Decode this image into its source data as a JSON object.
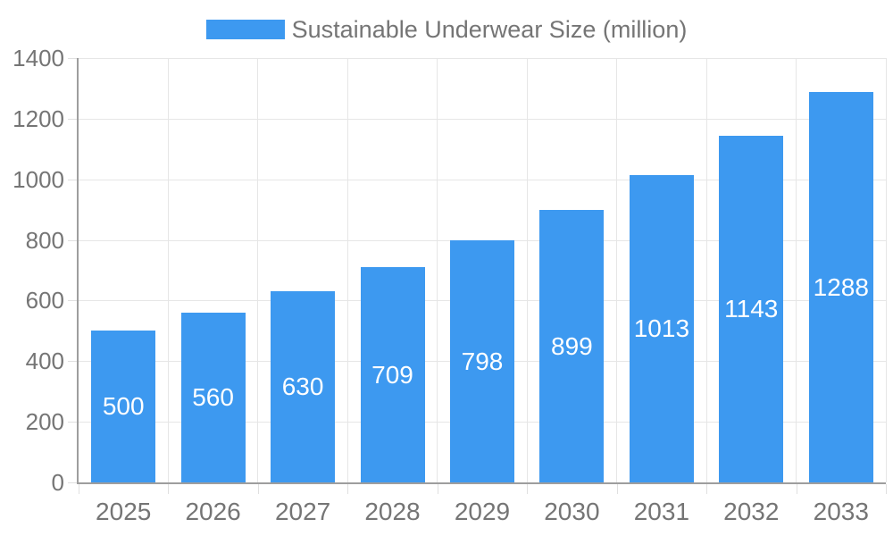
{
  "chart": {
    "colors": {
      "bar": "#3D99F0",
      "axis_line": "#9E9E9E",
      "gridline": "#E6E6E6",
      "tick": "#E0E0E0",
      "axis_text": "#757575",
      "bar_label_text": "#FFFFFF",
      "background": "#FFFFFF"
    }
  },
  "chart_data": {
    "type": "bar",
    "title": "",
    "legend_label": "Sustainable Underwear Size (million)",
    "legend_position": "top",
    "categories": [
      "2025",
      "2026",
      "2027",
      "2028",
      "2029",
      "2030",
      "2031",
      "2032",
      "2033"
    ],
    "values": [
      500,
      560,
      630,
      709,
      798,
      899,
      1013,
      1143,
      1288
    ],
    "value_labels_visible": true,
    "xlabel": "",
    "ylabel": "",
    "ylim": [
      0,
      1400
    ],
    "yticks": [
      0,
      200,
      400,
      600,
      800,
      1000,
      1200,
      1400
    ],
    "grid": true
  }
}
